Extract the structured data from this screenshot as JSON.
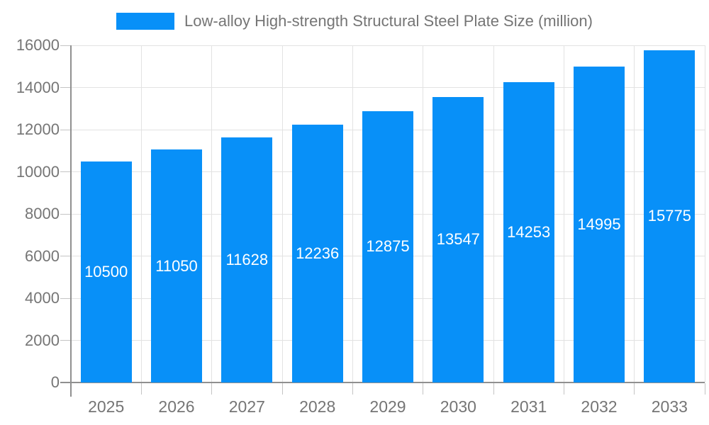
{
  "chart_data": {
    "type": "bar",
    "title": "",
    "legend": "Low-alloy High-strength Structural Steel Plate Size (million)",
    "legend_position": "top",
    "categories": [
      "2025",
      "2026",
      "2027",
      "2028",
      "2029",
      "2030",
      "2031",
      "2032",
      "2033"
    ],
    "values": [
      10500,
      11050,
      11628,
      12236,
      12875,
      13547,
      14253,
      14995,
      15775
    ],
    "bar_labels": [
      "10500",
      "11050",
      "11628",
      "12236",
      "12875",
      "13547",
      "14253",
      "14995",
      "15775"
    ],
    "xlabel": "",
    "ylabel": "",
    "ylim": [
      0,
      16000
    ],
    "ytick_step": 2000,
    "yticks": [
      0,
      2000,
      4000,
      6000,
      8000,
      10000,
      12000,
      14000,
      16000
    ],
    "grid": true,
    "colors": {
      "bar": "#0890f8",
      "bar_label": "#ffffff",
      "grid": "#e2e2e2",
      "axis": "#909090",
      "tick": "#c4c4c4",
      "text": "#757575",
      "background": "#ffffff"
    }
  }
}
